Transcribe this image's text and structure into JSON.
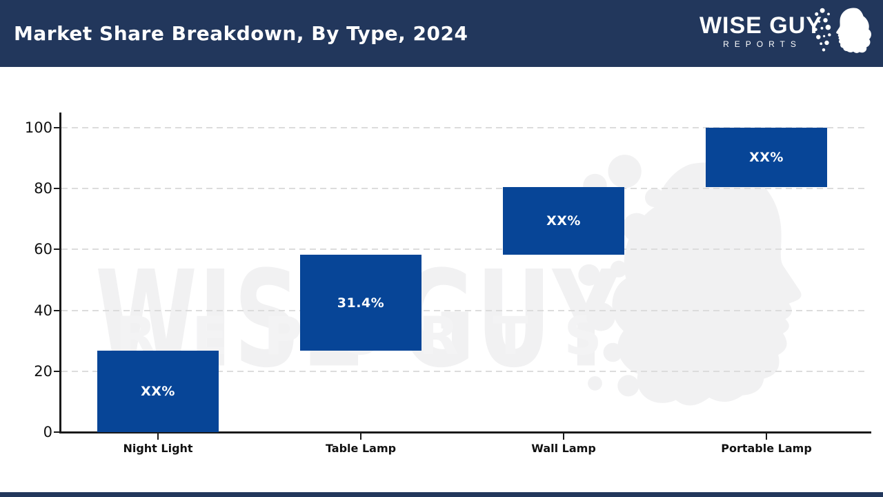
{
  "header": {
    "title": "Market Share Breakdown, By Type, 2024",
    "logo": {
      "line1": "WISE GUY",
      "line2": "REPORTS"
    }
  },
  "watermark": {
    "line1": "WISE GUY",
    "line2": "REPORTS"
  },
  "chart_data": {
    "type": "bar",
    "subtype": "waterfall",
    "title": "Market Share Breakdown, By Type, 2024",
    "categories": [
      "Night Light",
      "Table Lamp",
      "Wall Lamp",
      "Portable Lamp"
    ],
    "series": [
      {
        "name": "Market Share (%)",
        "starts": [
          0,
          26.8,
          58.2,
          80.6
        ],
        "ends": [
          26.8,
          58.2,
          80.6,
          100
        ],
        "values": [
          26.8,
          31.4,
          22.4,
          19.4
        ]
      }
    ],
    "bar_labels": [
      "XX%",
      "31.4%",
      "XX%",
      "XX%"
    ],
    "xlabel": "",
    "ylabel": "",
    "ylim": [
      0,
      105
    ],
    "yticks": [
      0,
      20,
      40,
      60,
      80,
      100
    ],
    "grid": "horizontal-dashed",
    "legend": "none"
  },
  "colors": {
    "header_bg": "#22375c",
    "footer_bg": "#22375c",
    "bar": "#074597",
    "grid": "#dcdcdc",
    "axis": "#1a1a1a",
    "bar_label_text": "#ffffff",
    "watermark": "#f1f1f2"
  }
}
